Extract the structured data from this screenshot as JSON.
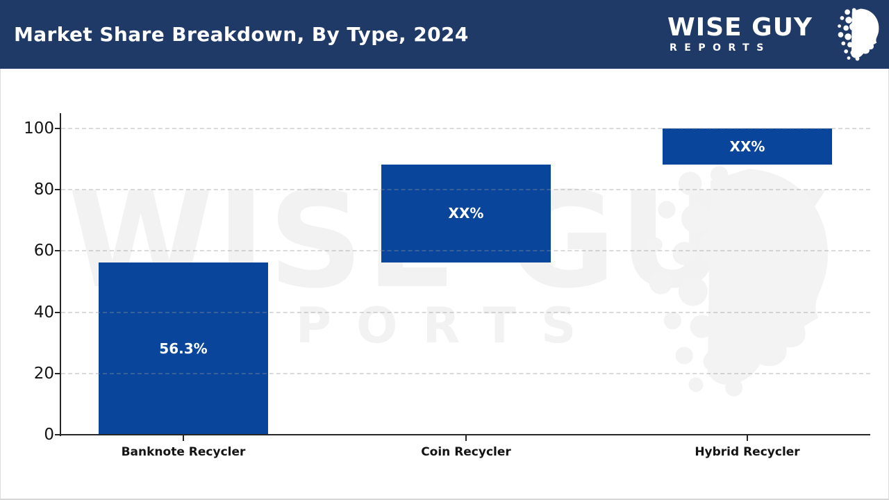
{
  "header": {
    "title": "Market Share Breakdown, By Type, 2024",
    "logo": {
      "line1": "WISE GUY",
      "line2": "REPORTS"
    }
  },
  "watermark": {
    "line1": "WISE GUY",
    "line2": "REPORTS"
  },
  "chart_data": {
    "type": "bar",
    "subtype": "waterfall-floating-bars",
    "title": "Market Share Breakdown, By Type, 2024",
    "categories": [
      "Banknote Recycler",
      "Coin Recycler",
      "Hybrid Recycler"
    ],
    "segments": [
      {
        "category": "Banknote Recycler",
        "start": 0,
        "end": 56.3,
        "label": "56.3%"
      },
      {
        "category": "Coin Recycler",
        "start": 56.3,
        "end": 88.2,
        "label": "XX%"
      },
      {
        "category": "Hybrid Recycler",
        "start": 88.2,
        "end": 100,
        "label": "XX%"
      }
    ],
    "xlabel": "",
    "ylabel": "",
    "ylim": [
      0,
      100
    ],
    "yticks": [
      0,
      20,
      40,
      60,
      80,
      100
    ],
    "grid": "dashed-horizontal",
    "legend": "none",
    "bar_color": "#09459b",
    "value_label_color": "#ffffff"
  },
  "colors": {
    "header_bg": "#203a68",
    "header_text": "#ffffff",
    "bar": "#09459b",
    "axis": "#262626",
    "tick_text": "#141414",
    "grid": "#c8c8c8",
    "watermark": "#f2f2f2",
    "figure_border": "#d9d9d9"
  }
}
